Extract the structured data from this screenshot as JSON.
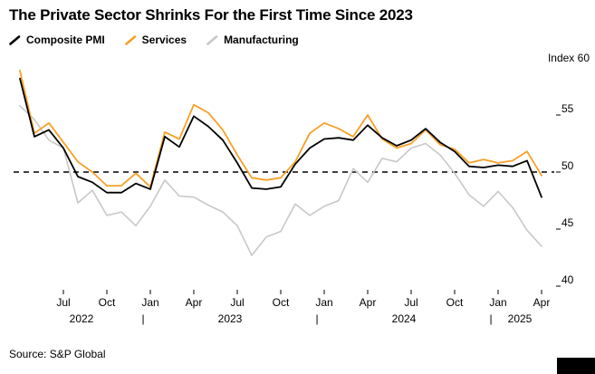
{
  "header": {
    "title": "The Private Sector Shrinks For the First Time Since 2023"
  },
  "legend": {
    "items": [
      {
        "label": "Composite PMI",
        "color": "#000000"
      },
      {
        "label": "Services",
        "color": "#f7a028"
      },
      {
        "label": "Manufacturing",
        "color": "#c8c8c8"
      }
    ]
  },
  "footer": {
    "source": "Source: S&P Global"
  },
  "chart_data": {
    "type": "line",
    "title": "The Private Sector Shrinks For the First Time Since 2023",
    "ylabel_top": "Index 60",
    "ylim": [
      40,
      60
    ],
    "y_ticks": [
      55,
      50,
      45,
      40
    ],
    "threshold": 50,
    "grid": false,
    "legend_position": "top-left",
    "x": [
      "Apr 2022",
      "May 2022",
      "Jun 2022",
      "Jul 2022",
      "Aug 2022",
      "Sep 2022",
      "Oct 2022",
      "Nov 2022",
      "Dec 2022",
      "Jan 2023",
      "Feb 2023",
      "Mar 2023",
      "Apr 2023",
      "May 2023",
      "Jun 2023",
      "Jul 2023",
      "Aug 2023",
      "Sep 2023",
      "Oct 2023",
      "Nov 2023",
      "Dec 2023",
      "Jan 2024",
      "Feb 2024",
      "Mar 2024",
      "Apr 2024",
      "May 2024",
      "Jun 2024",
      "Jul 2024",
      "Aug 2024",
      "Sep 2024",
      "Oct 2024",
      "Nov 2024",
      "Dec 2024",
      "Jan 2025",
      "Feb 2025",
      "Mar 2025",
      "Apr 2025"
    ],
    "series": [
      {
        "name": "Composite PMI",
        "color": "#000000",
        "width": 1.8,
        "values": [
          58.2,
          53.1,
          53.7,
          52.1,
          49.6,
          49.1,
          48.2,
          48.2,
          49.0,
          48.5,
          53.1,
          52.2,
          54.9,
          54.0,
          52.8,
          50.8,
          48.6,
          48.5,
          48.7,
          50.7,
          52.1,
          52.9,
          53.0,
          52.8,
          54.1,
          53.0,
          52.3,
          52.8,
          53.8,
          52.6,
          51.8,
          50.5,
          50.4,
          50.6,
          50.5,
          51.0,
          47.8
        ]
      },
      {
        "name": "Services",
        "color": "#f7a028",
        "width": 1.8,
        "values": [
          58.9,
          53.4,
          54.3,
          52.6,
          50.9,
          50.0,
          48.8,
          48.8,
          49.9,
          48.7,
          53.5,
          52.9,
          55.9,
          55.2,
          53.7,
          51.5,
          49.5,
          49.3,
          49.5,
          50.9,
          53.4,
          54.3,
          53.8,
          53.1,
          55.0,
          52.9,
          52.1,
          52.5,
          53.7,
          52.4,
          52.0,
          50.8,
          51.1,
          50.8,
          51.0,
          51.8,
          49.7
        ]
      },
      {
        "name": "Manufacturing",
        "color": "#c8c8c8",
        "width": 1.6,
        "values": [
          55.8,
          54.6,
          52.8,
          52.1,
          47.3,
          48.4,
          46.2,
          46.5,
          45.3,
          47.0,
          49.3,
          47.9,
          47.8,
          47.1,
          46.5,
          45.3,
          42.7,
          44.3,
          44.8,
          47.2,
          46.2,
          47.0,
          47.5,
          50.3,
          49.1,
          51.2,
          50.9,
          52.1,
          52.5,
          51.5,
          49.9,
          48.0,
          47.0,
          48.3,
          46.9,
          44.9,
          43.5
        ]
      }
    ],
    "x_ticks": [
      {
        "index": 3,
        "label": "Jul"
      },
      {
        "index": 6,
        "label": "Oct"
      },
      {
        "index": 9,
        "label": "Jan"
      },
      {
        "index": 12,
        "label": "Apr"
      },
      {
        "index": 15,
        "label": "Jul"
      },
      {
        "index": 18,
        "label": "Oct"
      },
      {
        "index": 21,
        "label": "Jan"
      },
      {
        "index": 24,
        "label": "Apr"
      },
      {
        "index": 27,
        "label": "Jul"
      },
      {
        "index": 30,
        "label": "Oct"
      },
      {
        "index": 33,
        "label": "Jan"
      },
      {
        "index": 36,
        "label": "Apr"
      }
    ],
    "year_labels": [
      {
        "position": 4.25,
        "label": "2022"
      },
      {
        "position": 14.5,
        "label": "2023"
      },
      {
        "position": 26.5,
        "label": "2024"
      },
      {
        "position": 34.5,
        "label": "2025"
      }
    ],
    "year_dividers": [
      8.5,
      20.5,
      32.5
    ]
  }
}
